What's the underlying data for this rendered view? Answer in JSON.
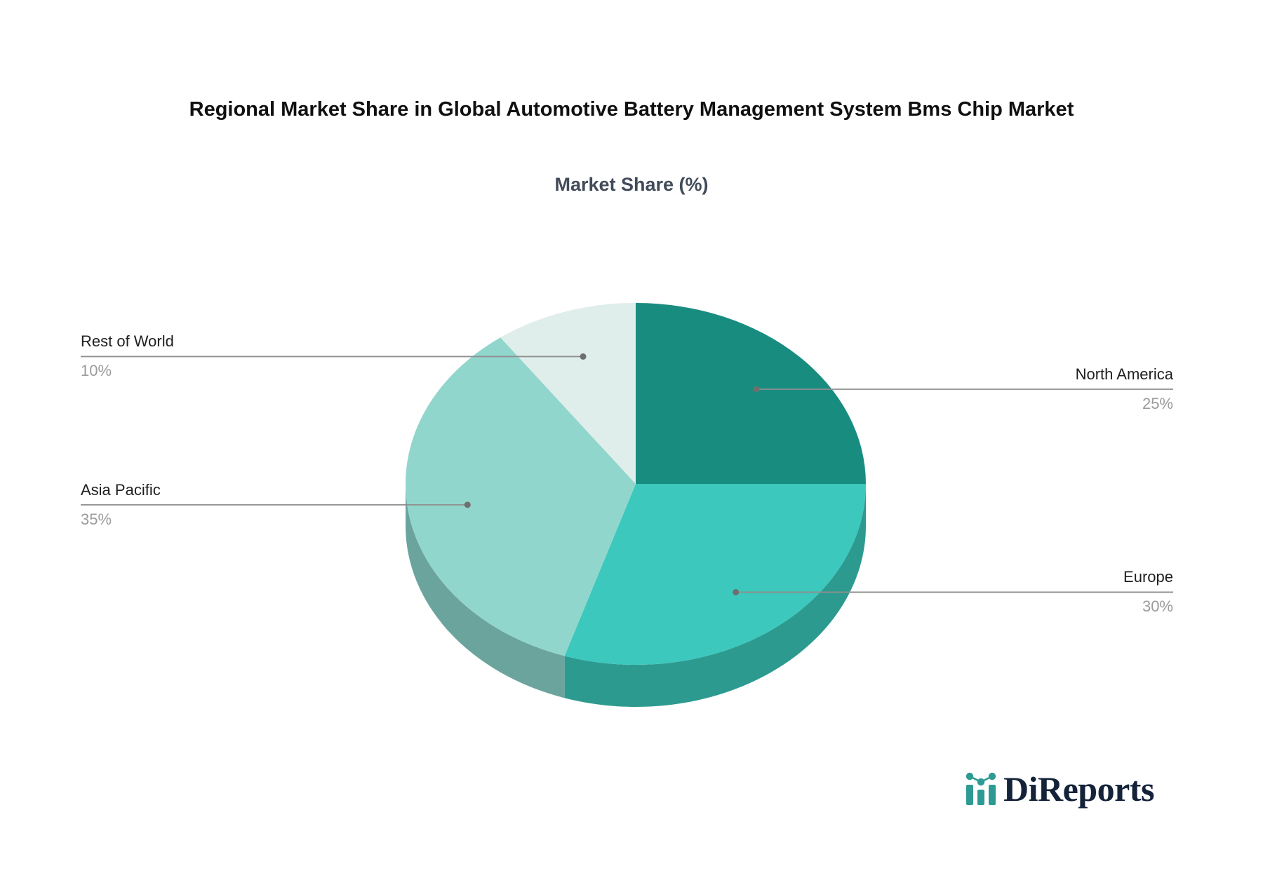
{
  "page": {
    "background": "#FFFFFF"
  },
  "header": {
    "title": "Regional Market Share in Global Automotive Battery Management System Bms Chip Market",
    "subtitle": "Market Share (%)"
  },
  "chart_data": {
    "type": "pie",
    "style": "3d",
    "title": "Regional Market Share in Global Automotive Battery Management System Bms Chip Market",
    "subtitle": "Market Share (%)",
    "unit": "%",
    "start_angle_deg": 0,
    "direction": "clockwise",
    "legend_position": "none",
    "categories": [
      "North America",
      "Europe",
      "Asia Pacific",
      "Rest of World"
    ],
    "values": [
      25,
      30,
      35,
      10
    ],
    "colors": [
      "#198C80",
      "#3CC8BC",
      "#90D6CC",
      "#DFEEEA"
    ],
    "side_colors": [
      "#137A6F",
      "#2D9A90",
      "#6BA49D",
      "#C3D9D4"
    ],
    "leader_line_color": "#8F8F8F",
    "leader_dot_color": "#6F6F6F",
    "label_name_color": "#1F1F1F",
    "label_value_color": "#9B9B9B",
    "labels": [
      {
        "name": "North America",
        "value": 25,
        "pct": "25%",
        "side": "right"
      },
      {
        "name": "Europe",
        "value": 30,
        "pct": "30%",
        "side": "right"
      },
      {
        "name": "Asia Pacific",
        "value": 35,
        "pct": "35%",
        "side": "left"
      },
      {
        "name": "Rest of World",
        "value": 10,
        "pct": "10%",
        "side": "left"
      }
    ]
  },
  "logo": {
    "text": "DiReports",
    "icon": "bar-chart-icon",
    "icon_color": "#2D9B94",
    "text_color": "#142339"
  }
}
